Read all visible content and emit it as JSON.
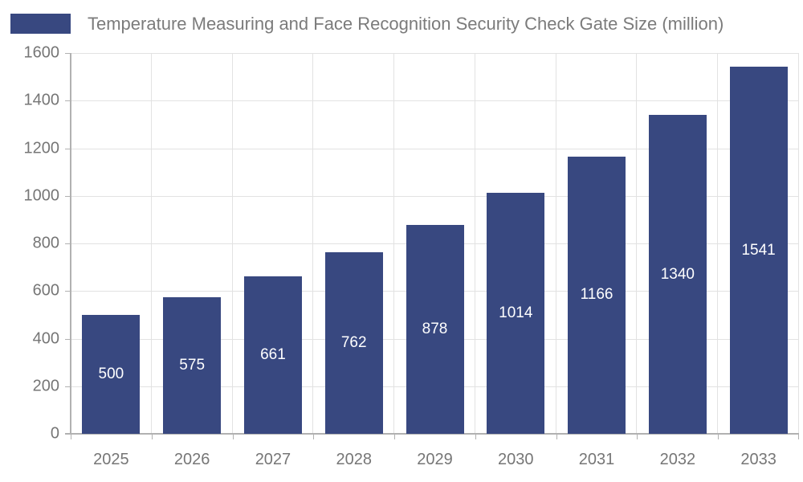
{
  "chart_data": {
    "type": "bar",
    "title": "Temperature Measuring and Face Recognition Security Check Gate Size (million)",
    "categories": [
      "2025",
      "2026",
      "2027",
      "2028",
      "2029",
      "2030",
      "2031",
      "2032",
      "2033"
    ],
    "values": [
      500,
      575,
      661,
      762,
      878,
      1014,
      1166,
      1340,
      1541
    ],
    "xlabel": "",
    "ylabel": "",
    "ylim": [
      0,
      1600
    ],
    "yticks": [
      0,
      200,
      400,
      600,
      800,
      1000,
      1200,
      1400,
      1600
    ],
    "grid": true,
    "legend_position": "top-left",
    "value_labels_inside_bars": true,
    "colors": {
      "bar": "#384880",
      "bar_value_label": "#ffffff",
      "grid": "#e2e2e2",
      "axis": "#b1b1b1",
      "tick_text": "#767676",
      "title_text": "#7b7b7b"
    }
  },
  "legend": {
    "label": "Temperature Measuring and Face Recognition Security Check Gate Size (million)"
  }
}
